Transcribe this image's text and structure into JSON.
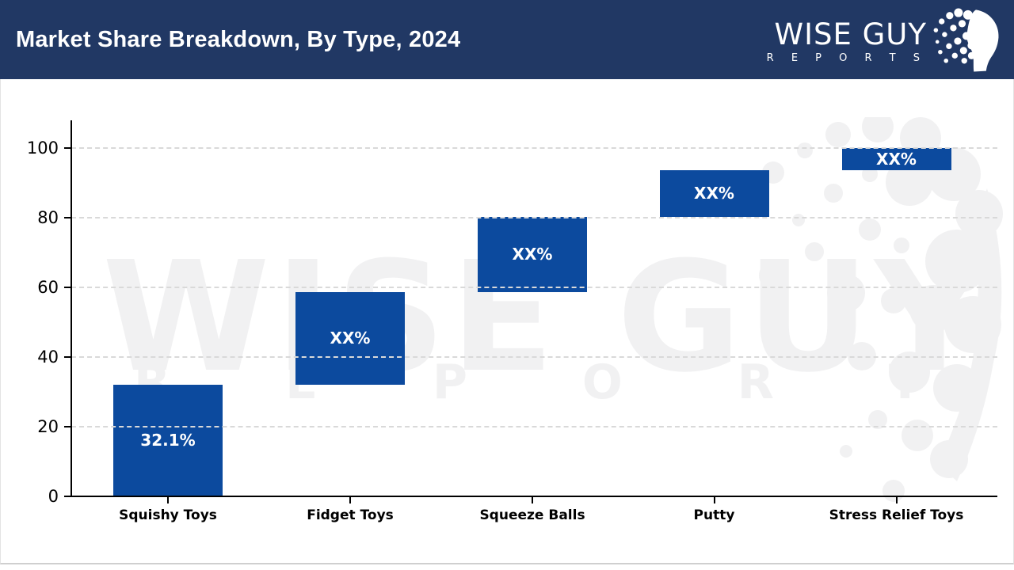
{
  "header": {
    "title": "Market Share Breakdown, By Type, 2024",
    "logo": {
      "name_line": "WISE GUY",
      "sub_line": "R E P O R T S"
    }
  },
  "watermark": {
    "line1": "WISE GUY",
    "line2": "R E P O R T S"
  },
  "colors": {
    "header_bg": "#213864",
    "bar": "#0c4a9e",
    "bar_label_text": "#ffffff",
    "grid": "#d9d9d9",
    "axis": "#000000",
    "watermark": "#f1f1f2"
  },
  "chart_data": {
    "type": "bar",
    "subtype": "waterfall",
    "title": "Market Share Breakdown, By Type, 2024",
    "categories": [
      "Squishy Toys",
      "Fidget Toys",
      "Squeeze Balls",
      "Putty",
      "Stress Relief Toys"
    ],
    "segments": [
      {
        "category": "Squishy Toys",
        "start": 0,
        "end": 32.1,
        "label": "32.1%"
      },
      {
        "category": "Fidget Toys",
        "start": 32.1,
        "end": 58.6,
        "label": "XX%"
      },
      {
        "category": "Squeeze Balls",
        "start": 58.6,
        "end": 80.2,
        "label": "XX%"
      },
      {
        "category": "Putty",
        "start": 80.2,
        "end": 93.5,
        "label": "XX%"
      },
      {
        "category": "Stress Relief Toys",
        "start": 93.5,
        "end": 100,
        "label": "XX%"
      }
    ],
    "xlabel": "",
    "ylabel": "",
    "yticks": [
      0,
      20,
      40,
      60,
      80,
      100
    ],
    "ylim": [
      0,
      107.5
    ],
    "grid": "horizontal-dashed",
    "legend": "none"
  }
}
